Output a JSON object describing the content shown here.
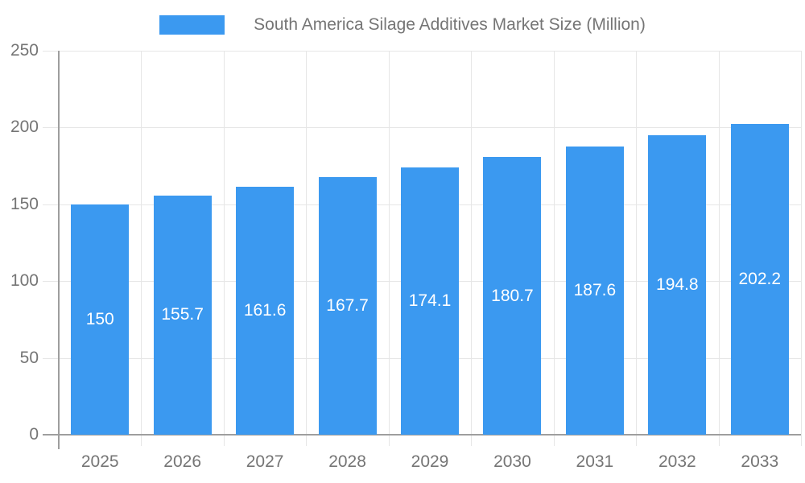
{
  "chart_data": {
    "type": "bar",
    "title": "South America Silage Additives Market Size (Million)",
    "categories": [
      "2025",
      "2026",
      "2027",
      "2028",
      "2029",
      "2030",
      "2031",
      "2032",
      "2033"
    ],
    "values": [
      150,
      155.7,
      161.6,
      167.7,
      174.1,
      180.7,
      187.6,
      194.8,
      202.2
    ],
    "value_labels": [
      "150",
      "155.7",
      "161.6",
      "167.7",
      "174.1",
      "180.7",
      "187.6",
      "194.8",
      "202.2"
    ],
    "xlabel": "",
    "ylabel": "",
    "ylim": [
      0,
      250
    ],
    "yticks": [
      0,
      50,
      100,
      150,
      200,
      250
    ],
    "grid": true,
    "legend_position": "top",
    "colors": {
      "bar": "#3B99F0",
      "axis_line": "#9e9e9e",
      "gridline": "#e6e6e6",
      "tick_text": "#757575",
      "bar_label_text": "#ffffff",
      "background": "#ffffff"
    }
  }
}
